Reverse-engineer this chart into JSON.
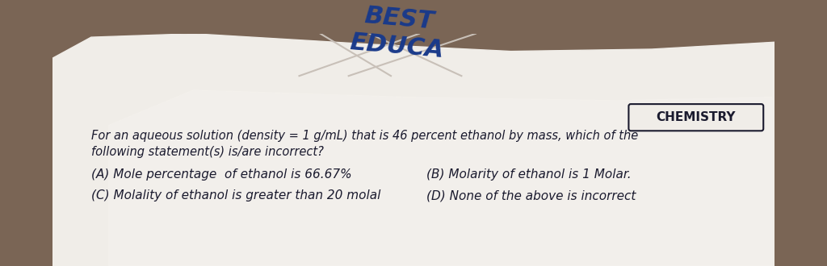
{
  "bg_top_color": "#b8a898",
  "bg_paper_color": "#e8e4e0",
  "paper_white": "#f2f0ee",
  "chemistry_label": "CHEMISTRY",
  "question_line1": "For an aqueous solution (density = 1 g/mL) that is 46 percent ethanol by mass, which of the",
  "question_line2": "following statement(s) is/are incorrect?",
  "option_A": "(A) Mole percentage  of ethanol is 66.67%",
  "option_B": "(B) Molarity of ethanol is 1 Molar.",
  "option_C": "(C) Molality of ethanol is greater than 20 molal",
  "option_D": "(D) None of the above is incorrect",
  "text_color": "#1a1a2e",
  "box_color": "#2a2a3e",
  "figsize": [
    10.24,
    3.3
  ],
  "dpi": 100
}
